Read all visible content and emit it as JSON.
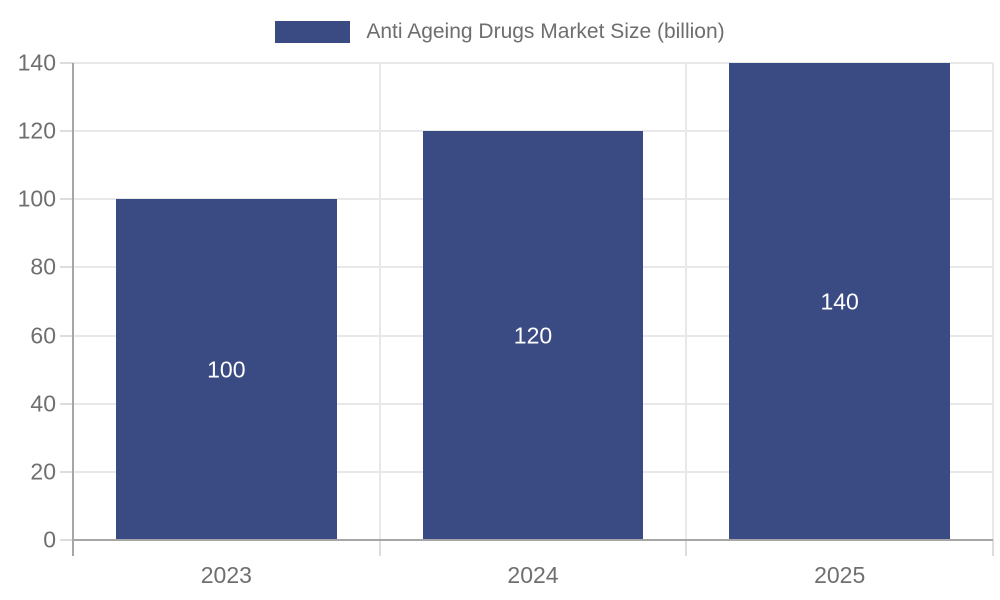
{
  "chart_data": {
    "type": "bar",
    "title": "Anti Ageing Drugs Market Size (billion)",
    "categories": [
      "2023",
      "2024",
      "2025"
    ],
    "values": [
      100,
      120,
      140
    ],
    "xlabel": "",
    "ylabel": "",
    "ylim": [
      0,
      140
    ],
    "ytick_step": 20,
    "yticks": [
      0,
      20,
      40,
      60,
      80,
      100,
      120,
      140
    ],
    "grid": true,
    "legend_position": "top-center",
    "data_labels": [
      "100",
      "120",
      "140"
    ],
    "data_label_position": "inside-center"
  },
  "legend": {
    "label": "Anti Ageing Drugs Market Size (billion)"
  },
  "colors": {
    "bar_fill": "#3A4B84",
    "bar_label_text": "#ffffff",
    "grid_line": "#e8e8e8",
    "axis_line": "#a6a6a6",
    "tick_mark": "#dddddd",
    "axis_text": "#6f6f6f",
    "legend_text": "#6e6e6e",
    "background": "#ffffff"
  }
}
